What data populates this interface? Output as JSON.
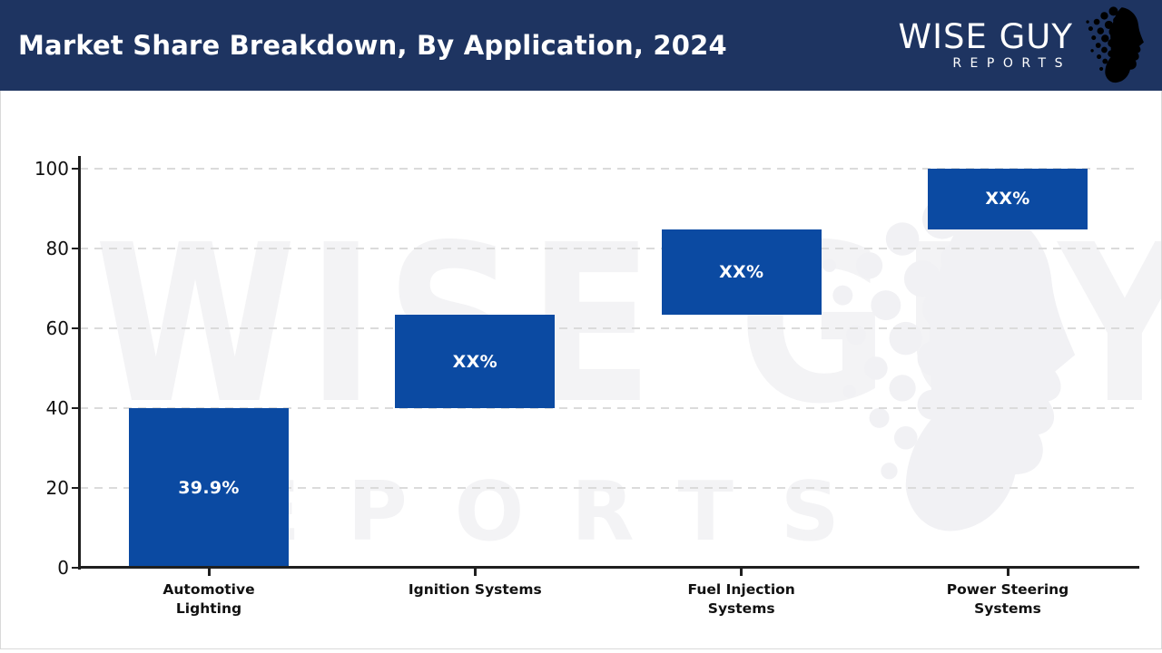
{
  "header": {
    "title": "Market Share Breakdown, By Application, 2024",
    "bg_color": "#1e3461",
    "logo": {
      "line1": "WISE GUY",
      "line2": "REPORTS"
    }
  },
  "watermark": {
    "line1": "WISE GUY",
    "line2": "REPORTS"
  },
  "chart_data": {
    "type": "bar",
    "subtype": "waterfall",
    "title": "Market Share Breakdown, By Application, 2024",
    "xlabel": "",
    "ylabel": "",
    "ylim": [
      0,
      103
    ],
    "yticks": [
      0,
      20,
      40,
      60,
      80,
      100
    ],
    "grid": "horizontal-dashed",
    "legend": "none",
    "bar_color": "#0b4aa2",
    "label_color": "#ffffff",
    "categories": [
      "Automotive Lighting",
      "Ignition Systems",
      "Fuel Injection Systems",
      "Power Steering Systems"
    ],
    "category_lines": [
      [
        "Automotive",
        "Lighting"
      ],
      [
        "Ignition Systems"
      ],
      [
        "Fuel Injection",
        "Systems"
      ],
      [
        "Power Steering",
        "Systems"
      ]
    ],
    "values": [
      39.9,
      23.5,
      21.4,
      15.2
    ],
    "displayed_labels": [
      "39.9%",
      "XX%",
      "XX%",
      "XX%"
    ],
    "segments": [
      {
        "category": "Automotive Lighting",
        "start": 0,
        "end": 39.9,
        "label": "39.9%"
      },
      {
        "category": "Ignition Systems",
        "start": 39.9,
        "end": 63.4,
        "label": "XX%"
      },
      {
        "category": "Fuel Injection Systems",
        "start": 63.4,
        "end": 84.8,
        "label": "XX%"
      },
      {
        "category": "Power Steering Systems",
        "start": 84.8,
        "end": 100,
        "label": "XX%"
      }
    ]
  }
}
